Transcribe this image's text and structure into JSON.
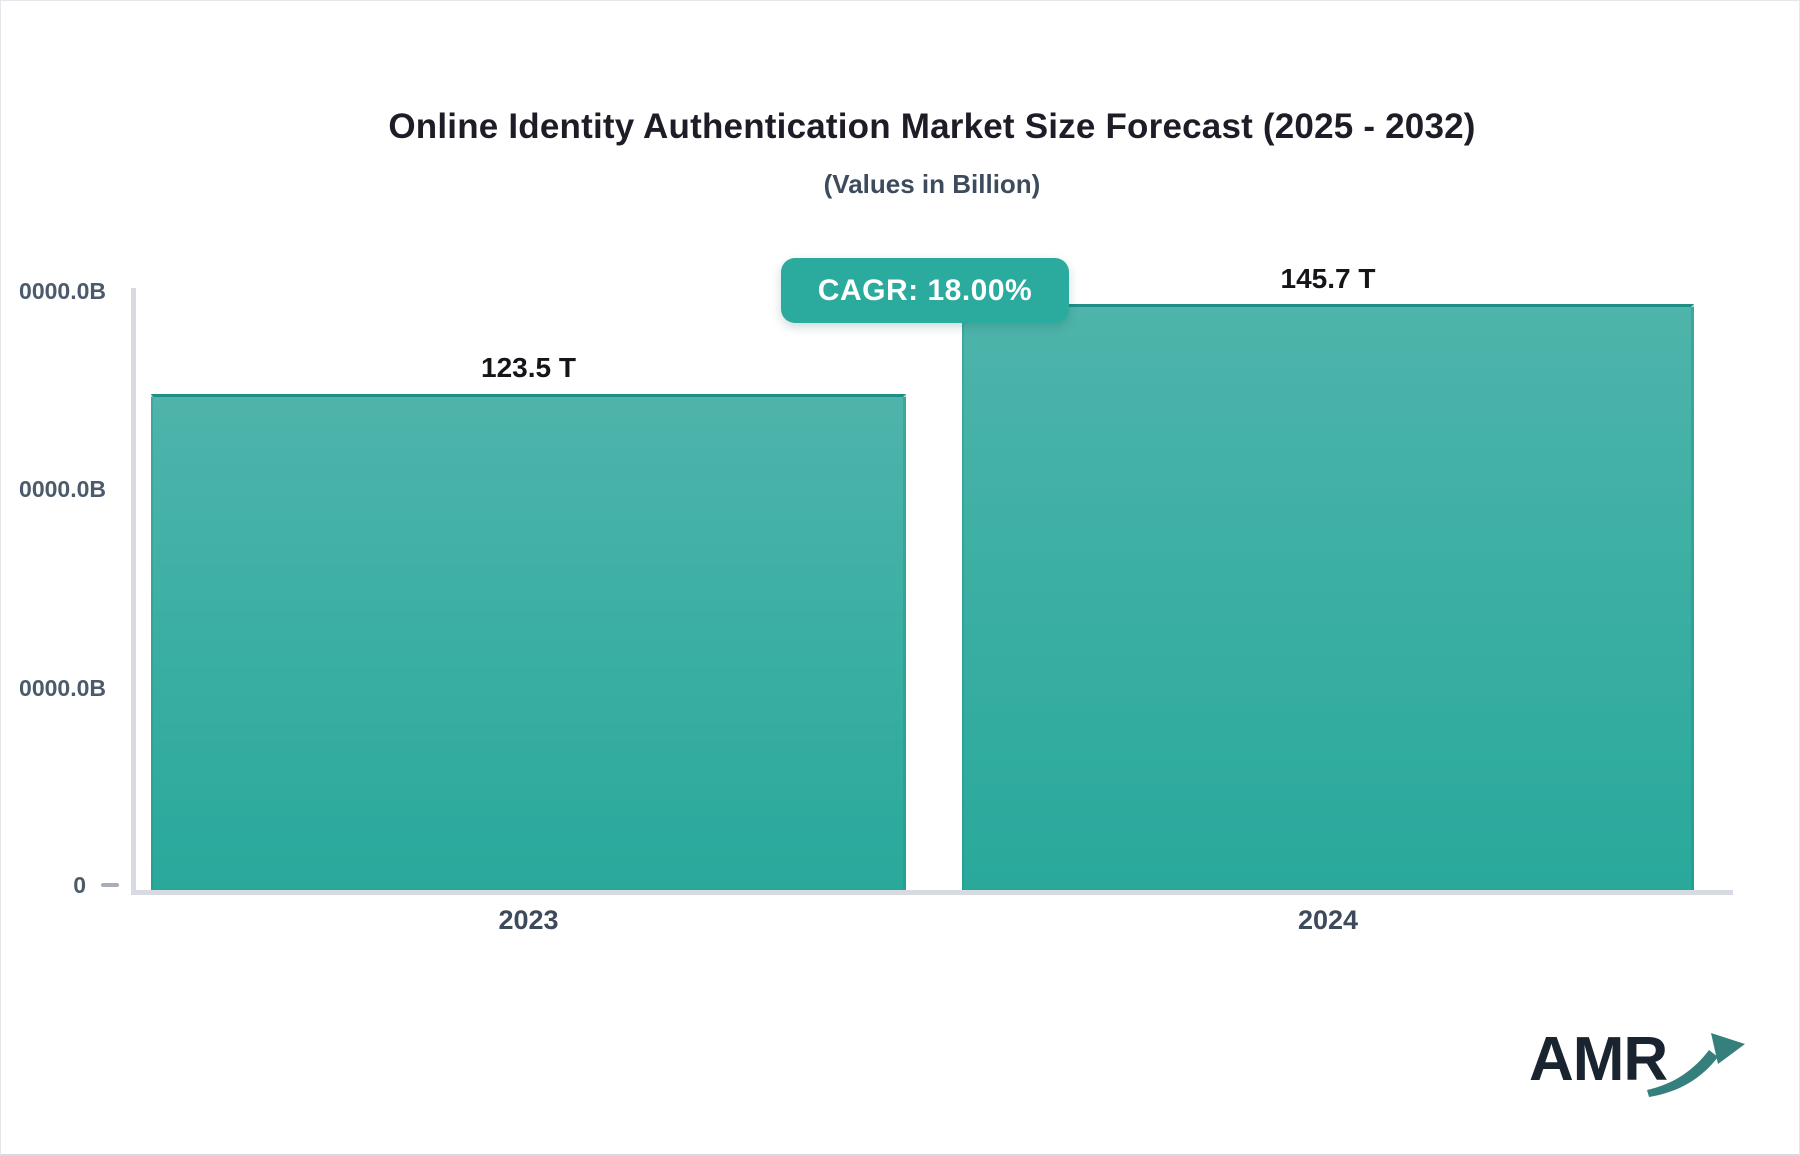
{
  "page": {
    "title": "Online Identity Authentication Market Size Forecast (2025 - 2032)",
    "subtitle": "(Values in Billion)"
  },
  "cagr_badge": {
    "label": "CAGR: 18.00%"
  },
  "logo": {
    "text": "AMR"
  },
  "colors": {
    "bar_gradient_top": "#4fb4ab",
    "bar_gradient_bottom": "#29a99b",
    "bar_top_border": "#1e8e86",
    "badge_background": "#2baa9e",
    "badge_text": "#ffffff",
    "title_text": "#1d1d28",
    "subtitle_text": "#3d4b5c",
    "axis_line": "#d7dae0",
    "tick_text": "#4c5b6b",
    "logo_navy": "#1a2430",
    "logo_teal": "#35807d"
  },
  "chart_data": {
    "type": "bar",
    "title": "Online Identity Authentication Market Size Forecast (2025 - 2032)",
    "subtitle": "(Values in Billion)",
    "categories": [
      "2023",
      "2024"
    ],
    "values": [
      123500,
      145700
    ],
    "unit": "Billion (B), labels shown in Trillions (T)",
    "bar_labels": [
      "123.5 T",
      "145.7 T"
    ],
    "cagr": "18.00%",
    "xlabel": "",
    "ylabel": "",
    "ylim": [
      0,
      150000
    ],
    "y_ticks": [
      0,
      50000,
      100000,
      150000
    ],
    "y_tick_labels_visible": [
      "0000.0B",
      "0000.0B",
      "0000.0B",
      "0"
    ],
    "grid": false,
    "legend": "none"
  }
}
